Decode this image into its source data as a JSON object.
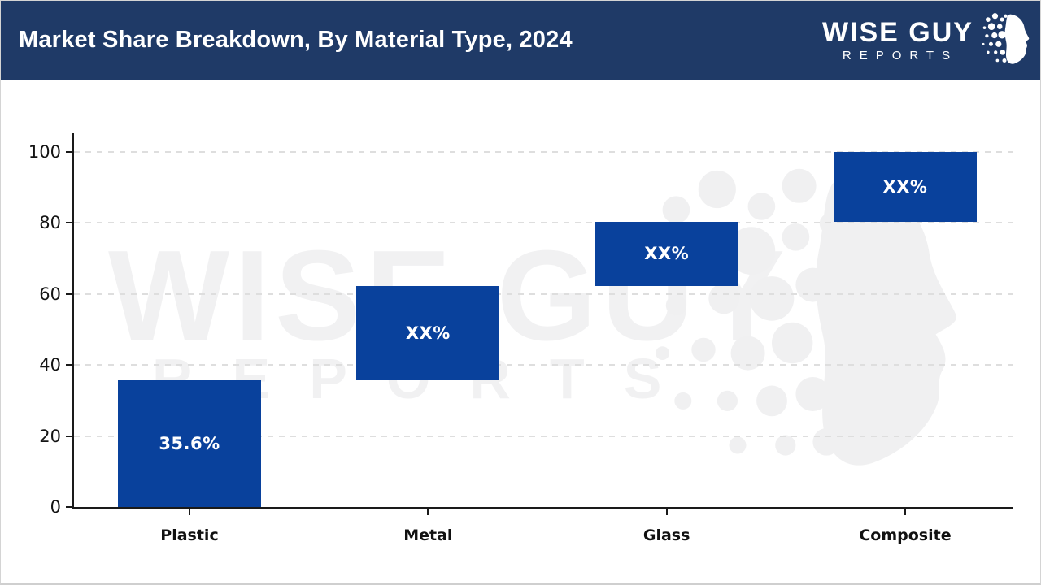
{
  "header": {
    "title": "Market Share Breakdown, By Material Type, 2024",
    "bg_color": "#1f3a67",
    "logo": {
      "line1": "WISE GUY",
      "line2": "REPORTS"
    }
  },
  "watermark": {
    "line1": "WISE GUY",
    "line2": "REPORTS"
  },
  "chart_data": {
    "type": "waterfall",
    "title": "Market Share Breakdown, By Material Type, 2024",
    "categories": [
      "Plastic",
      "Metal",
      "Glass",
      "Composite"
    ],
    "segments": [
      {
        "category": "Plastic",
        "start": 0,
        "end": 35.6,
        "label": "35.6%"
      },
      {
        "category": "Metal",
        "start": 35.6,
        "end": 62.3,
        "label": "XX%"
      },
      {
        "category": "Glass",
        "start": 62.3,
        "end": 80.4,
        "label": "XX%"
      },
      {
        "category": "Composite",
        "start": 80.4,
        "end": 100,
        "label": "XX%"
      }
    ],
    "y_ticks": [
      0,
      20,
      40,
      60,
      80,
      100
    ],
    "ylim": [
      0,
      105.7
    ],
    "xlabel": "",
    "ylabel": "",
    "grid": "horizontal-dashed",
    "legend": "none",
    "bar_color": "#09419c",
    "bar_label_color": "#ffffff",
    "axis_color": "#1a1a1a",
    "grid_color": "#dedede"
  }
}
